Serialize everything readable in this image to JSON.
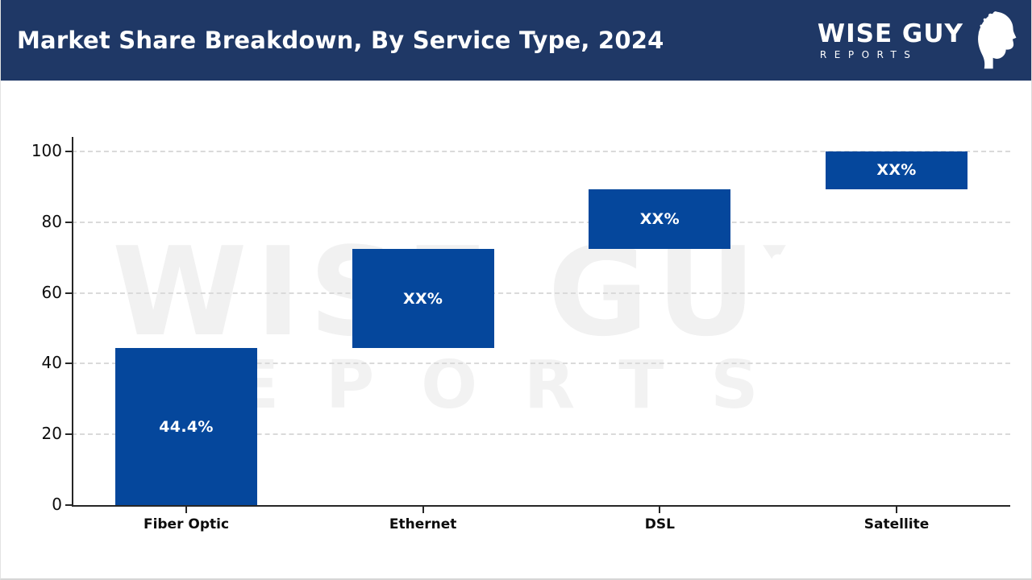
{
  "header": {
    "title": "Market Share Breakdown, By Service Type, 2024",
    "bg_color": "#1f3866",
    "logo": {
      "line1": "WISE GUY",
      "line2": "REPORTS",
      "head_icon": "dotted-head-profile-icon"
    }
  },
  "watermark": {
    "line1": "WISE GUY",
    "line2": "REPORTS",
    "head_icon": "dotted-head-profile-icon"
  },
  "chart_data": {
    "type": "bar",
    "subtype": "waterfall",
    "title": "Market Share Breakdown, By Service Type, 2024",
    "categories": [
      "Fiber Optic",
      "Ethernet",
      "DSL",
      "Satellite"
    ],
    "segments": [
      {
        "category": "Fiber Optic",
        "start": 0,
        "end": 44.4,
        "label": "44.4%"
      },
      {
        "category": "Ethernet",
        "start": 44.4,
        "end": 72.4,
        "label": "XX%"
      },
      {
        "category": "DSL",
        "start": 72.4,
        "end": 89.3,
        "label": "XX%"
      },
      {
        "category": "Satellite",
        "start": 89.3,
        "end": 100,
        "label": "XX%"
      }
    ],
    "xlabel": "",
    "ylabel": "",
    "yticks": [
      0,
      20,
      40,
      60,
      80,
      100
    ],
    "ylim": [
      0,
      105
    ],
    "grid": "dashed-horizontal",
    "legend": "none",
    "bar_color": "#05479c",
    "bar_label_color": "#ffffff",
    "axis_color": "#262626",
    "grid_color": "#dadada"
  }
}
